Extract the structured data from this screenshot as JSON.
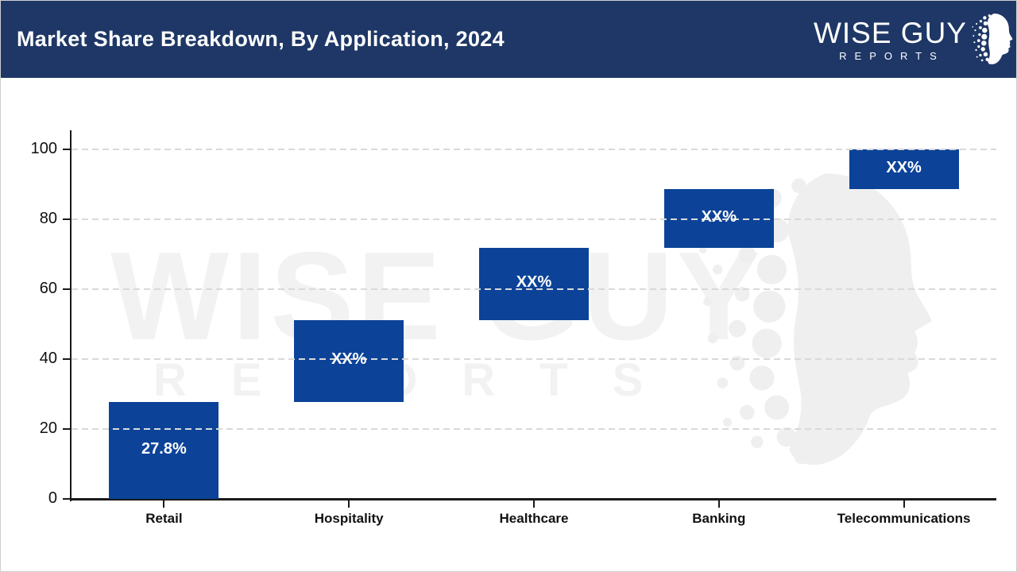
{
  "header": {
    "title": "Market Share Breakdown, By Application, 2024",
    "bg_color": "#1e3766",
    "logo": {
      "line1": "WISE GUY",
      "line2": "REPORTS"
    }
  },
  "watermark": {
    "line1": "WISE GUY",
    "line2": "REPORTS"
  },
  "chart_data": {
    "type": "bar",
    "subtype": "waterfall",
    "title": "Market Share Breakdown, By Application, 2024",
    "xlabel": "",
    "ylabel": "",
    "categories": [
      "Retail",
      "Hospitality",
      "Healthcare",
      "Banking",
      "Telecommunications"
    ],
    "segments": [
      {
        "category": "Retail",
        "start": 0,
        "end": 27.8,
        "label": "27.8%"
      },
      {
        "category": "Hospitality",
        "start": 27.8,
        "end": 51.2,
        "label": "XX%"
      },
      {
        "category": "Healthcare",
        "start": 51.2,
        "end": 71.9,
        "label": "XX%"
      },
      {
        "category": "Banking",
        "start": 71.9,
        "end": 88.7,
        "label": "XX%"
      },
      {
        "category": "Telecommunications",
        "start": 88.7,
        "end": 100,
        "label": "XX%"
      }
    ],
    "values": [
      27.8,
      23.4,
      20.7,
      16.8,
      11.3
    ],
    "yticks": [
      0,
      20,
      40,
      60,
      80,
      100
    ],
    "ylim": [
      0,
      105.5
    ],
    "grid": "horizontal-dashed",
    "legend": "none",
    "colors": {
      "bar": "#0c4399",
      "bar_label": "#ffffff",
      "grid": "#d9d9d9",
      "axis": "#1a1a1a",
      "tick_label": "#111111",
      "header_bg": "#1e3766",
      "watermark": "#f2f2f2"
    }
  }
}
